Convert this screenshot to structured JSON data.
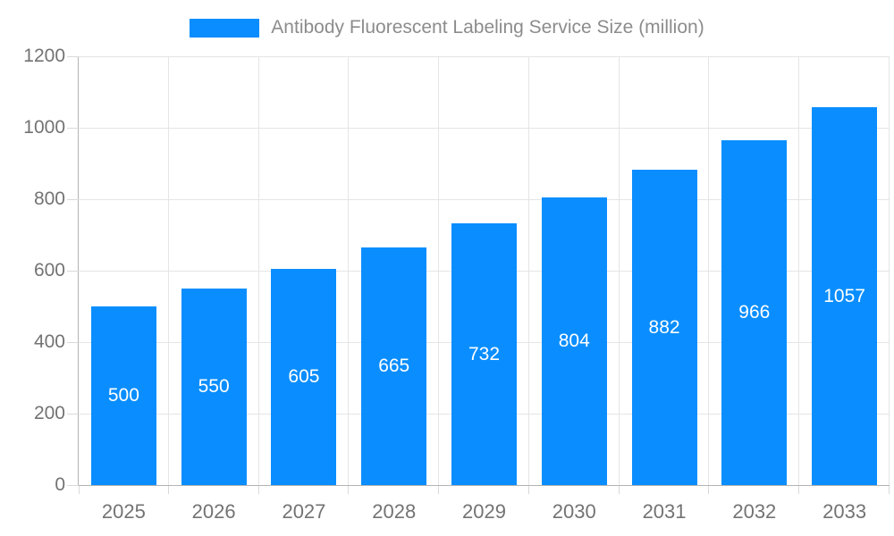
{
  "chart_data": {
    "type": "bar",
    "title": "",
    "legend": {
      "position": "top",
      "label": "Antibody Fluorescent Labeling Service Size (million)"
    },
    "categories": [
      "2025",
      "2026",
      "2027",
      "2028",
      "2029",
      "2030",
      "2031",
      "2032",
      "2033"
    ],
    "series": [
      {
        "name": "Antibody Fluorescent Labeling Service Size (million)",
        "values": [
          500,
          550,
          605,
          665,
          732,
          804,
          882,
          966,
          1057
        ]
      }
    ],
    "value_labels_shown": true,
    "xlabel": "",
    "ylabel": "",
    "ylim": [
      0,
      1200
    ],
    "yticks": [
      0,
      200,
      400,
      600,
      800,
      1000,
      1200
    ],
    "grid": true,
    "colors": {
      "bar": "#0a8eff",
      "value_label": "#ffffff",
      "tick_label": "#737373",
      "legend_text": "#8c8c8c",
      "gridline": "#e5e5e5",
      "tick": "#d9d9d9",
      "axis_line": "#b3b3b3",
      "background": "#ffffff"
    }
  }
}
